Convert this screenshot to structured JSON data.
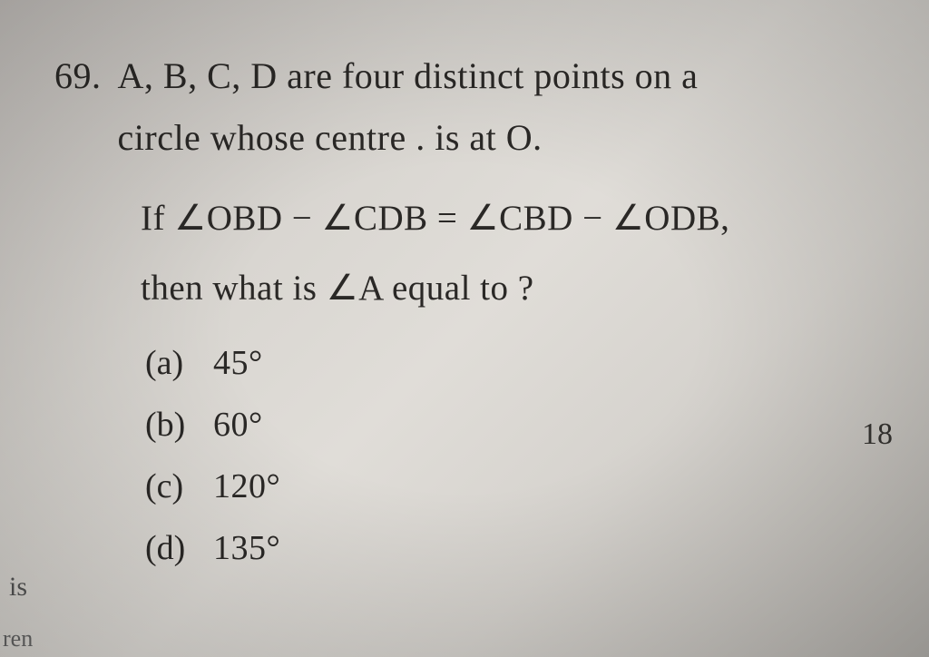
{
  "question": {
    "number": "69.",
    "line1": "A, B, C, D are four distinct points on a",
    "line2": "circle whose centre . is at O.",
    "condition": "If ∠OBD − ∠CDB = ∠CBD − ∠ODB,",
    "then": "then what is ∠A equal to ?"
  },
  "options": [
    {
      "label": "(a)",
      "value": "45°"
    },
    {
      "label": "(b)",
      "value": "60°"
    },
    {
      "label": "(c)",
      "value": "120°"
    },
    {
      "label": "(d)",
      "value": "135°"
    }
  ],
  "side_number": "18",
  "margin_text1": "is",
  "margin_text2": "ren",
  "colors": {
    "text": "#2a2826",
    "bg_light": "#e0ddd8",
    "bg_dark": "#b8b5b0"
  }
}
